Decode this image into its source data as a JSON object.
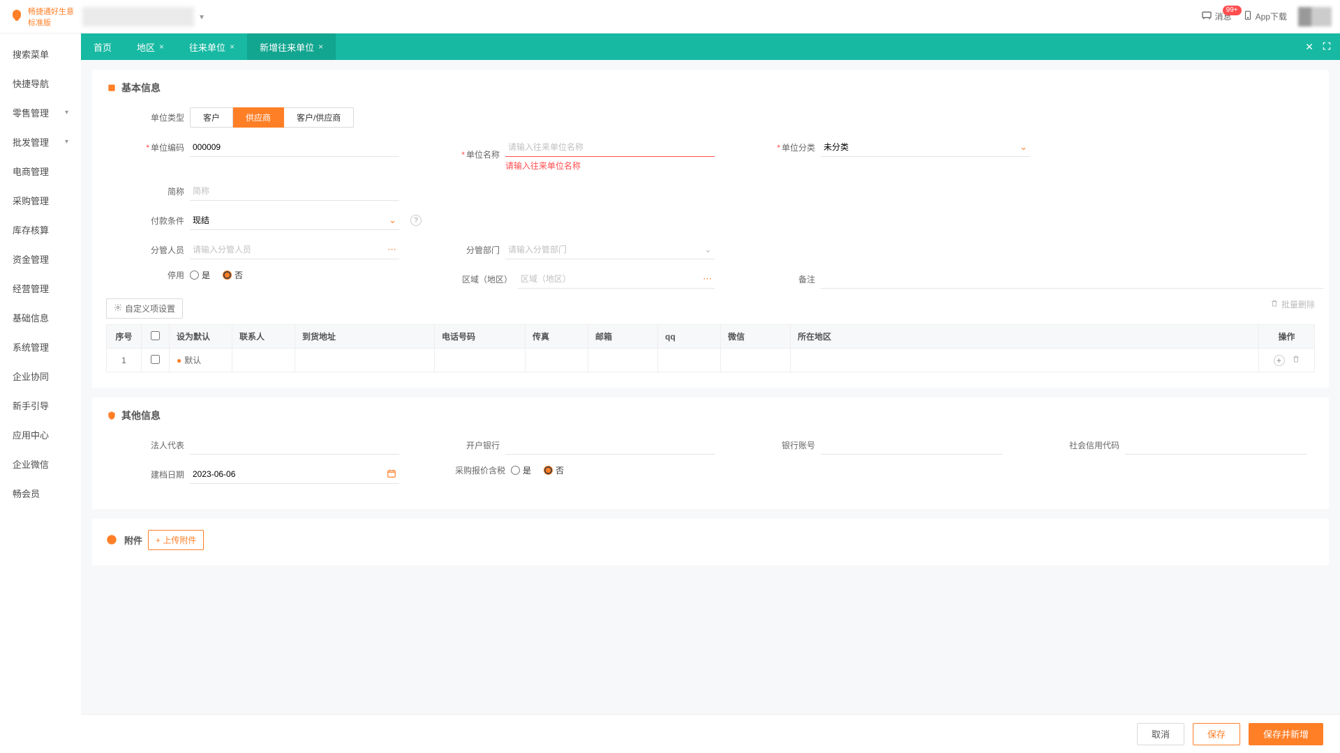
{
  "header": {
    "logo_name": "畅捷通好生意",
    "logo_edition": "标准版",
    "messages_label": "消息",
    "messages_badge": "99+",
    "app_download_label": "App下载"
  },
  "sidebar": {
    "items": [
      {
        "label": "搜索菜单",
        "has_caret": false
      },
      {
        "label": "快捷导航",
        "has_caret": false
      },
      {
        "label": "零售管理",
        "has_caret": true
      },
      {
        "label": "批发管理",
        "has_caret": true
      },
      {
        "label": "电商管理",
        "has_caret": false
      },
      {
        "label": "采购管理",
        "has_caret": false
      },
      {
        "label": "库存核算",
        "has_caret": false
      },
      {
        "label": "资金管理",
        "has_caret": false
      },
      {
        "label": "经营管理",
        "has_caret": false
      },
      {
        "label": "基础信息",
        "has_caret": false
      },
      {
        "label": "系统管理",
        "has_caret": false
      },
      {
        "label": "企业协同",
        "has_caret": false
      },
      {
        "label": "新手引导",
        "has_caret": false
      },
      {
        "label": "应用中心",
        "has_caret": false
      },
      {
        "label": "企业微信",
        "has_caret": false
      },
      {
        "label": "畅会员",
        "has_caret": false
      }
    ]
  },
  "tabs": [
    {
      "label": "首页",
      "closable": false,
      "active": false
    },
    {
      "label": "地区",
      "closable": true,
      "active": false
    },
    {
      "label": "往来单位",
      "closable": true,
      "active": false
    },
    {
      "label": "新增往来单位",
      "closable": true,
      "active": true
    }
  ],
  "sections": {
    "basic_title": "基本信息",
    "other_title": "其他信息",
    "attach_title": "附件"
  },
  "form": {
    "unit_type_label": "单位类型",
    "unit_type_options": [
      "客户",
      "供应商",
      "客户/供应商"
    ],
    "unit_type_selected_index": 1,
    "unit_code_label": "单位编码",
    "unit_code_value": "000009",
    "unit_name_label": "单位名称",
    "unit_name_placeholder": "请输入往来单位名称",
    "unit_name_value": "",
    "unit_name_error": "请输入往来单位名称",
    "unit_category_label": "单位分类",
    "unit_category_value": "未分类",
    "short_name_label": "简称",
    "short_name_placeholder": "简称",
    "short_name_value": "",
    "pay_terms_label": "付款条件",
    "pay_terms_value": "现结",
    "manager_label": "分管人员",
    "manager_placeholder": "请输入分管人员",
    "manager_value": "",
    "dept_label": "分管部门",
    "dept_placeholder": "请输入分管部门",
    "dept_value": "",
    "disabled_label": "停用",
    "disabled_yes": "是",
    "disabled_no": "否",
    "disabled_value": "否",
    "region_label": "区域（地区）",
    "region_placeholder": "区域（地区）",
    "region_value": "",
    "remark_label": "备注",
    "remark_value": "",
    "custom_settings_label": "自定义项设置",
    "batch_delete_label": "批量删除",
    "legal_rep_label": "法人代表",
    "bank_label": "开户银行",
    "bank_acct_label": "银行账号",
    "credit_code_label": "社会信用代码",
    "created_date_label": "建档日期",
    "created_date_value": "2023-06-06",
    "purchase_tax_label": "采购报价含税",
    "purchase_tax_yes": "是",
    "purchase_tax_no": "否",
    "purchase_tax_value": "否",
    "upload_button": "+ 上传附件"
  },
  "table": {
    "columns": [
      "序号",
      "",
      "设为默认",
      "联系人",
      "到货地址",
      "电话号码",
      "传真",
      "邮箱",
      "qq",
      "微信",
      "所在地区",
      "操作"
    ],
    "col_widths": [
      "50px",
      "40px",
      "90px",
      "90px",
      "200px",
      "130px",
      "90px",
      "100px",
      "90px",
      "100px",
      "auto",
      "80px"
    ],
    "rows": [
      {
        "index": "1",
        "checked": false,
        "is_default": true,
        "default_label": "默认"
      }
    ]
  },
  "footer": {
    "cancel": "取消",
    "save": "保存",
    "save_new": "保存并新增"
  },
  "colors": {
    "primary": "#ff7f27",
    "teal": "#17b9a2",
    "teal_dark": "#12a58f",
    "error": "#ff4d4f",
    "border": "#e4e4e4",
    "text": "#333",
    "muted": "#999"
  }
}
